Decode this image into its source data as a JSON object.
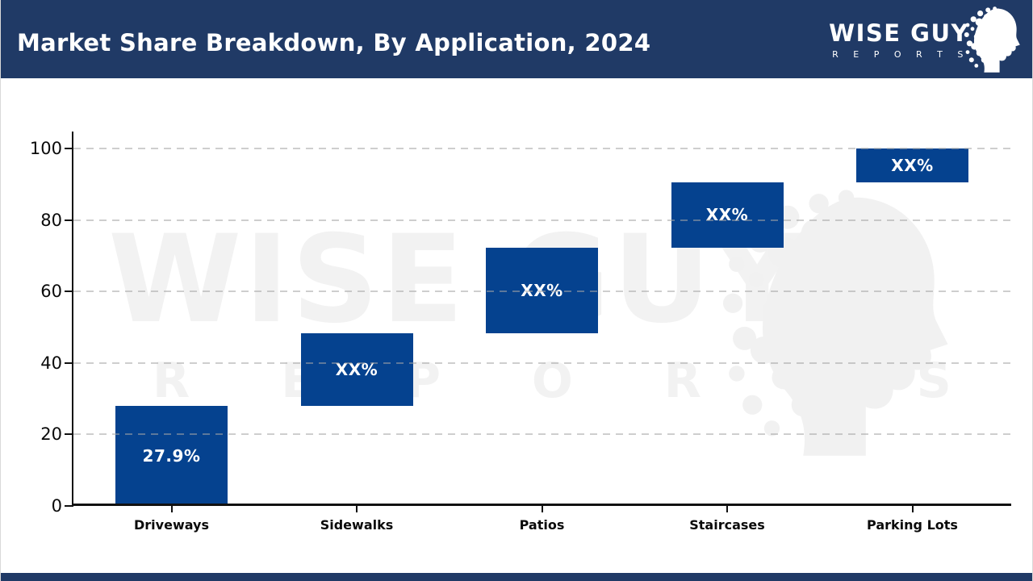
{
  "header": {
    "title": "Market Share Breakdown, By Application, 2024",
    "logo_line1": "WISE GUY",
    "logo_line2": "R E P O R T S"
  },
  "watermark": {
    "line1": "WISE GUY",
    "line2": "R E P O R T S"
  },
  "chart_data": {
    "type": "bar",
    "subtype": "floating-waterfall",
    "title": "Market Share Breakdown, By Application, 2024",
    "categories": [
      "Driveways",
      "Sidewalks",
      "Patios",
      "Staircases",
      "Parking Lots"
    ],
    "series": [
      {
        "name": "Market Share",
        "segments": [
          {
            "category": "Driveways",
            "start": 0,
            "end": 27.9,
            "label": "27.9%"
          },
          {
            "category": "Sidewalks",
            "start": 27.9,
            "end": 48.2,
            "label": "XX%"
          },
          {
            "category": "Patios",
            "start": 48.2,
            "end": 72.2,
            "label": "XX%"
          },
          {
            "category": "Staircases",
            "start": 72.2,
            "end": 90.6,
            "label": "XX%"
          },
          {
            "category": "Parking Lots",
            "start": 90.6,
            "end": 100,
            "label": "XX%"
          }
        ]
      }
    ],
    "xlabel": "",
    "ylabel": "",
    "ylim": [
      0,
      105
    ],
    "yticks": [
      0,
      20,
      40,
      60,
      80,
      100
    ],
    "grid": "horizontal dashed, drawn over bars",
    "legend": "none",
    "bar_color": "#05428f",
    "bar_label_color": "#ffffff"
  },
  "colors": {
    "header_bg": "#203a66",
    "footer_bg": "#203a66",
    "bar": "#05428f",
    "grid": "#d6d6d6",
    "axis": "#111111",
    "watermark": "#f2f2f2",
    "title_text": "#ffffff"
  }
}
